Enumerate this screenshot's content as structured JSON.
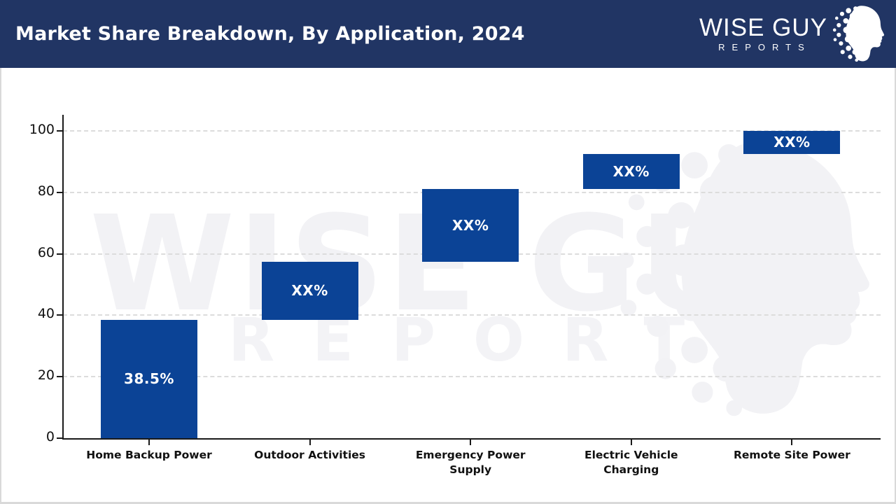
{
  "header": {
    "title": "Market Share Breakdown, By Application, 2024",
    "bg_color": "#213564",
    "logo": {
      "name": "WISE GUY",
      "subtitle": "REPORTS"
    }
  },
  "watermark": {
    "name": "WISE GUY",
    "subtitle": "REPORTS"
  },
  "chart_data": {
    "type": "bar",
    "subtype": "waterfall",
    "title": "Market Share Breakdown, By Application, 2024",
    "categories": [
      "Home Backup Power",
      "Outdoor Activities",
      "Emergency Power\nSupply",
      "Electric Vehicle\nCharging",
      "Remote Site Power"
    ],
    "segments": [
      {
        "category": "Home Backup Power",
        "start": 0,
        "end": 38.5,
        "label": "38.5%"
      },
      {
        "category": "Outdoor Activities",
        "start": 38.5,
        "end": 57.5,
        "label": "XX%"
      },
      {
        "category": "Emergency Power Supply",
        "start": 57.5,
        "end": 81,
        "label": "XX%"
      },
      {
        "category": "Electric Vehicle Charging",
        "start": 81,
        "end": 92.5,
        "label": "XX%"
      },
      {
        "category": "Remote Site Power",
        "start": 92.5,
        "end": 100,
        "label": "XX%"
      }
    ],
    "values_pct": [
      38.5,
      19,
      23.5,
      11.5,
      7.5
    ],
    "yticks": [
      0,
      20,
      40,
      60,
      80,
      100
    ],
    "ylim": [
      0,
      105
    ],
    "xlabel": "",
    "ylabel": "",
    "bar_color": "#0b4396",
    "label_color": "#ffffff",
    "grid": {
      "axis": "y",
      "style": "dashed",
      "color": "#dcdcdc"
    },
    "legend": null
  }
}
